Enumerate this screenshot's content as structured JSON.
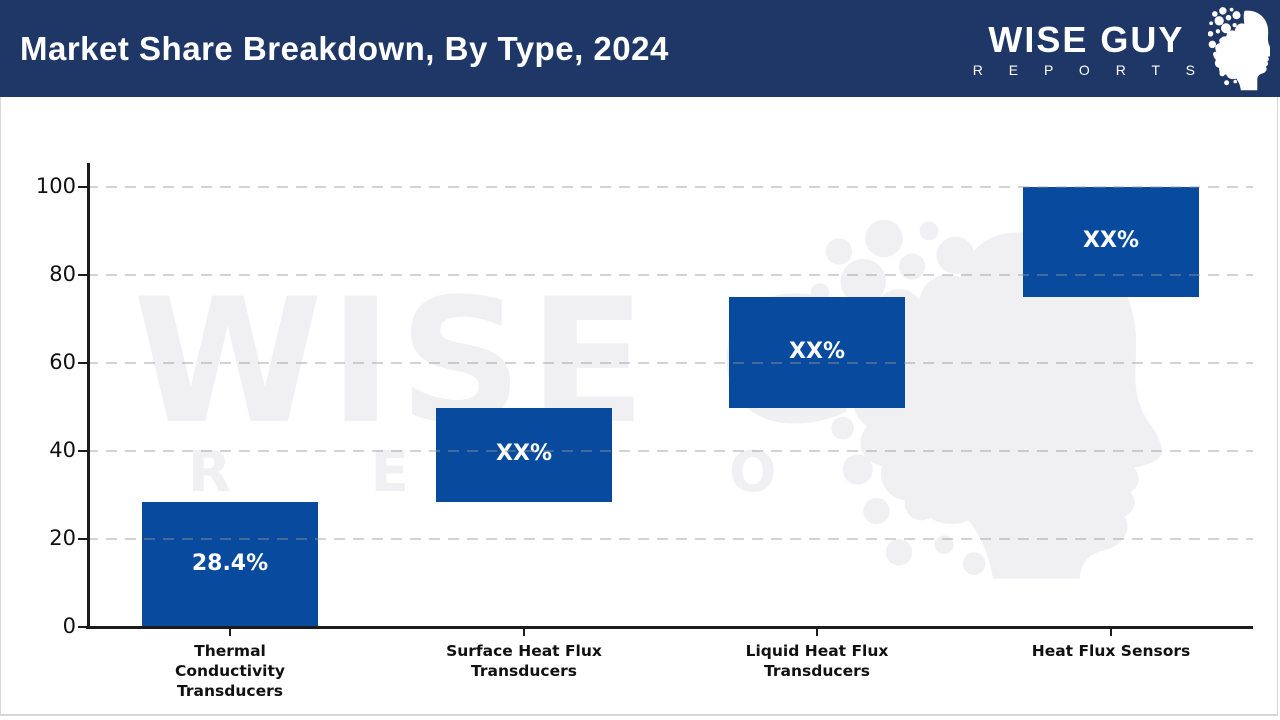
{
  "header": {
    "title": "Market Share Breakdown, By Type, 2024",
    "bg_color": "#1f3767"
  },
  "logo": {
    "line1": "WISE GUY",
    "line2": "R E P O R T S"
  },
  "watermark": {
    "line1": "WISE GU",
    "line2": "R E P O R T S"
  },
  "chart_data": {
    "type": "bar",
    "variant": "stacked-waterfall-segments",
    "title": "Market Share Breakdown, By Type, 2024",
    "categories": [
      "Thermal Conductivity Transducers",
      "Surface Heat Flux Transducers",
      "Liquid Heat Flux Transducers",
      "Heat Flux Sensors"
    ],
    "category_lines": [
      [
        "Thermal",
        "Conductivity",
        "Transducers"
      ],
      [
        "Surface Heat Flux",
        "Transducers"
      ],
      [
        "Liquid Heat Flux",
        "Transducers"
      ],
      [
        "Heat Flux Sensors"
      ]
    ],
    "segments": [
      {
        "start": 0,
        "end": 28.4,
        "label": "28.4%"
      },
      {
        "start": 28.4,
        "end": 49.7,
        "label": "XX%"
      },
      {
        "start": 49.7,
        "end": 75,
        "label": "XX%"
      },
      {
        "start": 75,
        "end": 100,
        "label": "XX%"
      }
    ],
    "ylim": [
      0,
      100
    ],
    "yticks": [
      0,
      20,
      40,
      60,
      80,
      100
    ],
    "xlabel": "",
    "ylabel": "",
    "grid": "horizontal-dashed",
    "legend": "none",
    "bar_color": "#084a9e",
    "bar_label_color": "#ffffff",
    "axis_color": "#1c1c1c"
  }
}
